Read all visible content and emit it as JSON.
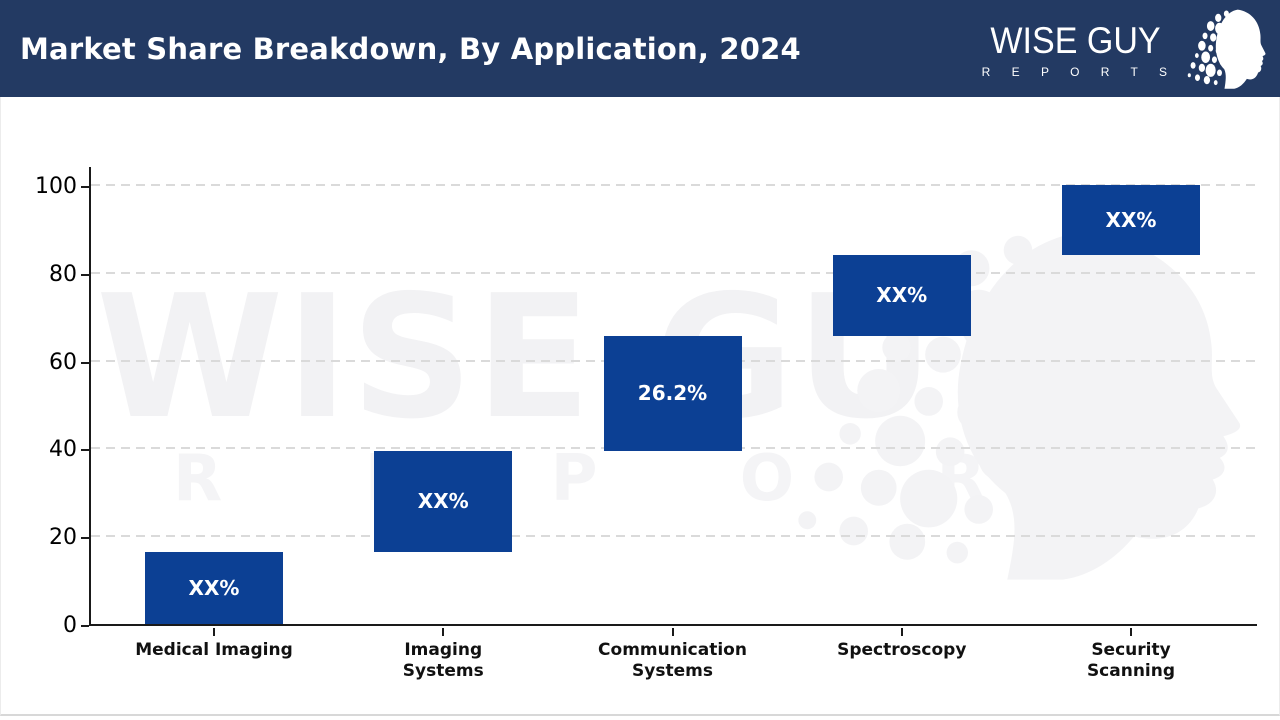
{
  "header": {
    "title": "Market Share Breakdown, By Application, 2024",
    "bg_color": "#233a63",
    "logo": {
      "wordmark": "WISE GUY",
      "subtext": "R E P O R T S",
      "face_icon": "head-profile-dots-icon"
    }
  },
  "watermark": {
    "line1": "WISE GUY",
    "line2": "R E P O R T S",
    "face_icon": "head-profile-dots-icon"
  },
  "chart_data": {
    "type": "bar",
    "subtype": "floating-waterfall",
    "title": "Market Share Breakdown, By Application, 2024",
    "xlabel": "",
    "ylabel": "",
    "ylim": [
      0,
      100
    ],
    "yticks": [
      0,
      20,
      40,
      60,
      80,
      100
    ],
    "grid": "dashed horizontal",
    "legend": "none",
    "bar_color": "#0c4094",
    "bar_label_color": "#ffffff",
    "categories": [
      "Medical Imaging",
      "Imaging Systems",
      "Communication Systems",
      "Spectroscopy",
      "Security Scanning"
    ],
    "segments": [
      {
        "category": "Medical Imaging",
        "start": 0,
        "end": 16.5,
        "value": 16.5,
        "label": "XX%"
      },
      {
        "category": "Imaging Systems",
        "start": 16.5,
        "end": 39.5,
        "value": 23.0,
        "label": "XX%"
      },
      {
        "category": "Communication Systems",
        "start": 39.5,
        "end": 65.7,
        "value": 26.2,
        "label": "26.2%"
      },
      {
        "category": "Spectroscopy",
        "start": 65.7,
        "end": 84.0,
        "value": 18.3,
        "label": "XX%"
      },
      {
        "category": "Security Scanning",
        "start": 84.0,
        "end": 100.0,
        "value": 16.0,
        "label": "XX%"
      }
    ]
  }
}
